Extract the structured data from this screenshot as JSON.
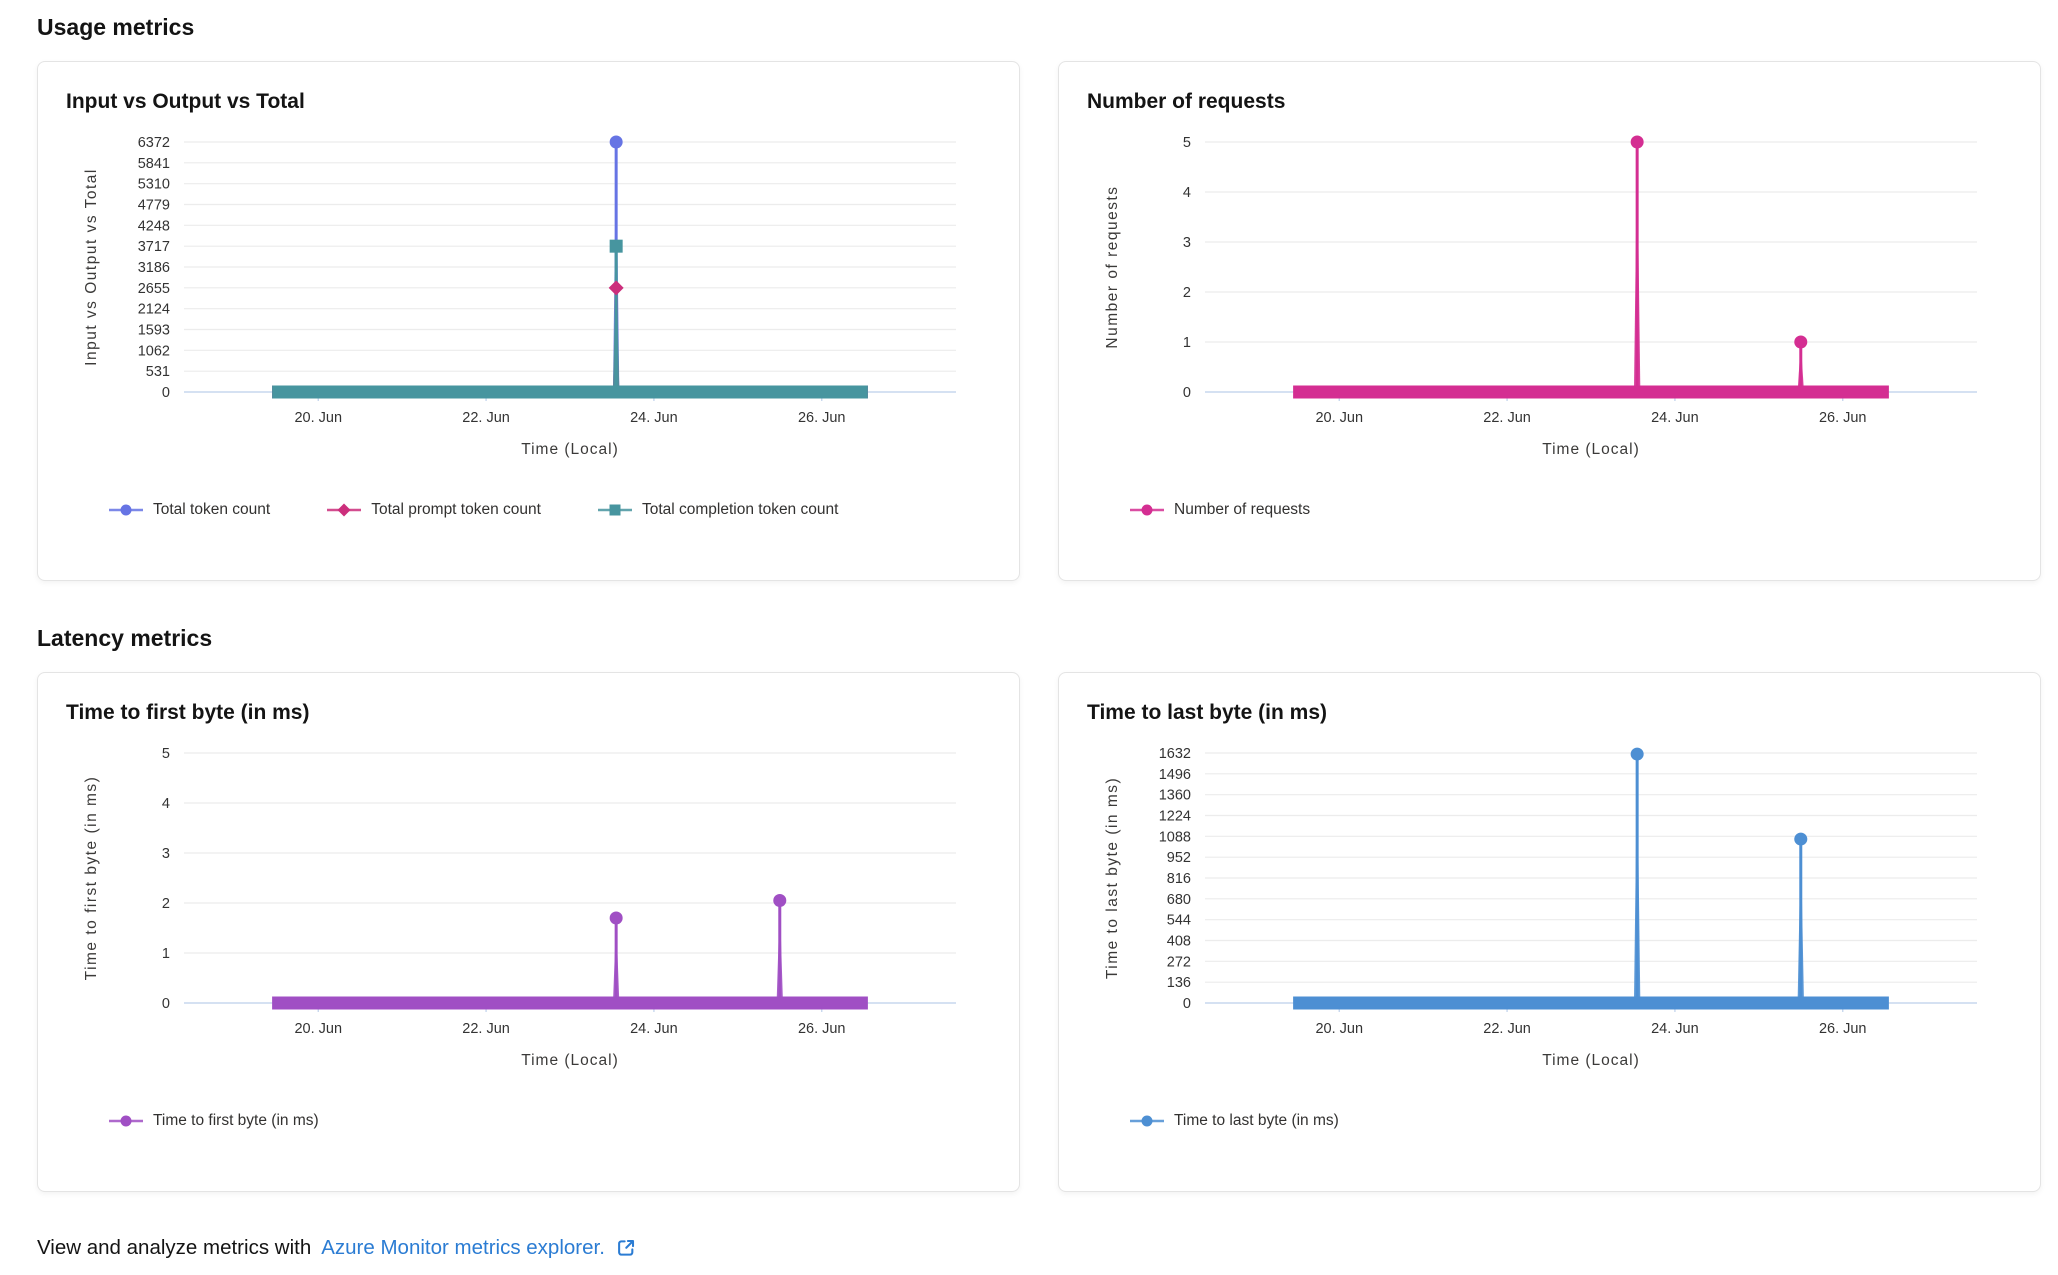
{
  "page": {
    "sections": [
      {
        "title": "Usage metrics"
      },
      {
        "title": "Latency metrics"
      }
    ],
    "footer": {
      "text": "View and analyze metrics with",
      "link_label": "Azure Monitor metrics explorer.",
      "link_color": "#2b7cd3",
      "icon": "open-in-new-window"
    }
  },
  "chart_data": [
    {
      "type": "line",
      "title": "Input vs Output vs Total",
      "xlabel": "Time (Local)",
      "ylabel": "Input vs Output vs Total",
      "x_domain": [
        18.4,
        27.6
      ],
      "x_ticks": [
        {
          "v": 20,
          "label": "20. Jun"
        },
        {
          "v": 22,
          "label": "22. Jun"
        },
        {
          "v": 24,
          "label": "24. Jun"
        },
        {
          "v": 26,
          "label": "26. Jun"
        }
      ],
      "y_ticks": [
        0,
        531,
        1062,
        1593,
        2124,
        2655,
        3186,
        3717,
        4248,
        4779,
        5310,
        5841,
        6372
      ],
      "ylim": [
        0,
        6372
      ],
      "baseline_band": {
        "x_start": 19.45,
        "x_end": 26.55,
        "y": 0
      },
      "grid": true,
      "legend_position": "bottom",
      "series": [
        {
          "name": "Total token count",
          "color": "#6674e4",
          "marker": "circle",
          "points": [
            {
              "x": 23.55,
              "y": 6372
            }
          ]
        },
        {
          "name": "Total prompt token count",
          "color": "#cc2e7c",
          "marker": "diamond",
          "points": [
            {
              "x": 23.55,
              "y": 2655
            }
          ]
        },
        {
          "name": "Total completion token count",
          "color": "#47959f",
          "marker": "square",
          "points": [
            {
              "x": 23.55,
              "y": 3717
            }
          ]
        }
      ]
    },
    {
      "type": "line",
      "title": "Number of requests",
      "xlabel": "Time (Local)",
      "ylabel": "Number of requests",
      "x_domain": [
        18.4,
        27.6
      ],
      "x_ticks": [
        {
          "v": 20,
          "label": "20. Jun"
        },
        {
          "v": 22,
          "label": "22. Jun"
        },
        {
          "v": 24,
          "label": "24. Jun"
        },
        {
          "v": 26,
          "label": "26. Jun"
        }
      ],
      "y_ticks": [
        0,
        1,
        2,
        3,
        4,
        5
      ],
      "ylim": [
        0,
        5
      ],
      "baseline_band": {
        "x_start": 19.45,
        "x_end": 26.55,
        "y": 0
      },
      "grid": true,
      "legend_position": "bottom",
      "series": [
        {
          "name": "Number of requests",
          "color": "#d42e92",
          "marker": "circle",
          "points": [
            {
              "x": 23.55,
              "y": 5
            },
            {
              "x": 25.5,
              "y": 1
            }
          ]
        }
      ]
    },
    {
      "type": "line",
      "title": "Time to first byte (in ms)",
      "xlabel": "Time (Local)",
      "ylabel": "Time to first byte (in ms)",
      "x_domain": [
        18.4,
        27.6
      ],
      "x_ticks": [
        {
          "v": 20,
          "label": "20. Jun"
        },
        {
          "v": 22,
          "label": "22. Jun"
        },
        {
          "v": 24,
          "label": "24. Jun"
        },
        {
          "v": 26,
          "label": "26. Jun"
        }
      ],
      "y_ticks": [
        0,
        1,
        2,
        3,
        4,
        5
      ],
      "ylim": [
        0,
        5
      ],
      "baseline_band": {
        "x_start": 19.45,
        "x_end": 26.55,
        "y": 0
      },
      "grid": true,
      "legend_position": "bottom",
      "series": [
        {
          "name": "Time to first byte (in ms)",
          "color": "#a04fc4",
          "marker": "circle",
          "points": [
            {
              "x": 23.55,
              "y": 1.7
            },
            {
              "x": 25.5,
              "y": 2.05
            }
          ]
        }
      ]
    },
    {
      "type": "line",
      "title": "Time to last byte (in ms)",
      "xlabel": "Time (Local)",
      "ylabel": "Time to last byte (in ms)",
      "x_domain": [
        18.4,
        27.6
      ],
      "x_ticks": [
        {
          "v": 20,
          "label": "20. Jun"
        },
        {
          "v": 22,
          "label": "22. Jun"
        },
        {
          "v": 24,
          "label": "24. Jun"
        },
        {
          "v": 26,
          "label": "26. Jun"
        }
      ],
      "y_ticks": [
        0,
        136,
        272,
        408,
        544,
        680,
        816,
        952,
        1088,
        1224,
        1360,
        1496,
        1632
      ],
      "ylim": [
        0,
        1632
      ],
      "baseline_band": {
        "x_start": 19.45,
        "x_end": 26.55,
        "y": 0
      },
      "grid": true,
      "legend_position": "bottom",
      "series": [
        {
          "name": "Time to last byte (in ms)",
          "color": "#4d8fd3",
          "marker": "circle",
          "points": [
            {
              "x": 23.55,
              "y": 1625
            },
            {
              "x": 25.5,
              "y": 1070
            }
          ]
        }
      ]
    }
  ]
}
